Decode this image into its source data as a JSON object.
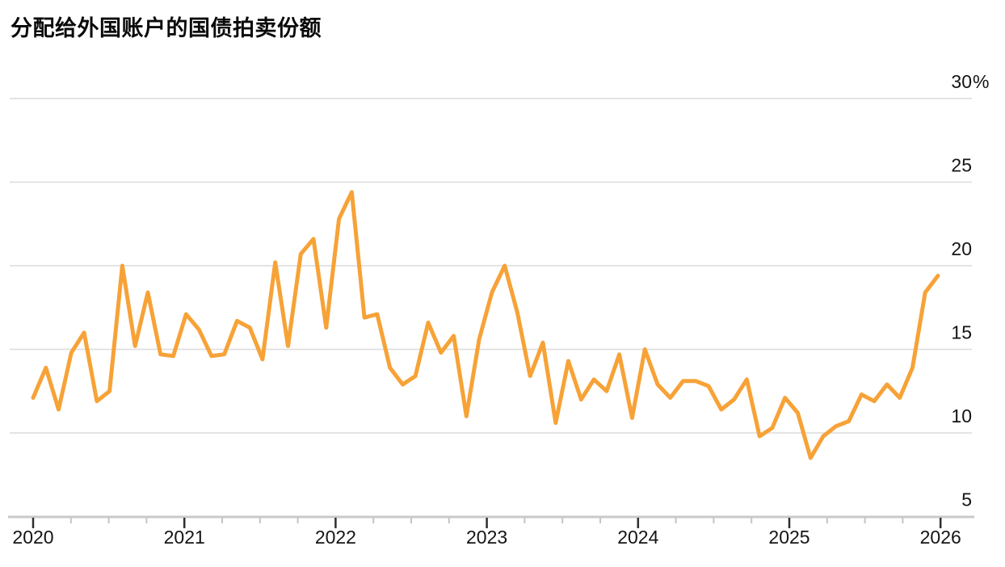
{
  "header": {
    "title": "分配给外国账户的国债拍卖份额"
  },
  "colors": {
    "line": "#F7A237",
    "gridline": "#DBDBDB",
    "axis_baseline": "#C9C9C9",
    "major_tick": "#2E2E2E",
    "minor_tick": "#C4C4C4",
    "text": "#141414",
    "background": "#FFFFFF"
  },
  "chart_data": {
    "type": "line",
    "title": "分配给外国账户的国债拍卖份额",
    "xlabel": "",
    "ylabel": "",
    "unit_suffix": "%",
    "legend": "none",
    "grid": "horizontal",
    "ylim": [
      5,
      30
    ],
    "y_ticks": [
      30,
      25,
      20,
      15,
      10,
      5
    ],
    "y_tick_labels": [
      "30%",
      "25",
      "20",
      "15",
      "10",
      "5"
    ],
    "x_tick_labels": [
      "2020",
      "2021",
      "2022",
      "2023",
      "2024",
      "2025",
      "2026"
    ],
    "x_minor_ticks_per_year": 3,
    "x": [
      "2020-01",
      "2020-02",
      "2020-03",
      "2020-04",
      "2020-05",
      "2020-06",
      "2020-07",
      "2020-08",
      "2020-09",
      "2020-10",
      "2020-11",
      "2020-12",
      "2021-01",
      "2021-02",
      "2021-03",
      "2021-04",
      "2021-05",
      "2021-06",
      "2021-07",
      "2021-08",
      "2021-09",
      "2021-10",
      "2021-11",
      "2021-12",
      "2022-01",
      "2022-02",
      "2022-03",
      "2022-04",
      "2022-05",
      "2022-06",
      "2022-07",
      "2022-08",
      "2022-09",
      "2022-10",
      "2022-11",
      "2022-12",
      "2023-01",
      "2023-02",
      "2023-03",
      "2023-04",
      "2023-05",
      "2023-06",
      "2023-07",
      "2023-08",
      "2023-09",
      "2023-10",
      "2023-11",
      "2023-12",
      "2024-01",
      "2024-02",
      "2024-03",
      "2024-04",
      "2024-05",
      "2024-06",
      "2024-07",
      "2024-08",
      "2024-09",
      "2024-10",
      "2024-11",
      "2024-12",
      "2025-01",
      "2025-02",
      "2025-03",
      "2025-04",
      "2025-05",
      "2025-06",
      "2025-07",
      "2025-08",
      "2025-09",
      "2025-10",
      "2025-11",
      "2025-12"
    ],
    "values": [
      12.1,
      13.9,
      11.4,
      14.8,
      16.0,
      11.9,
      12.5,
      20.0,
      15.2,
      18.4,
      14.7,
      14.6,
      17.1,
      16.2,
      14.6,
      14.7,
      16.7,
      16.3,
      14.4,
      20.2,
      15.2,
      20.7,
      21.6,
      16.3,
      22.8,
      24.4,
      16.9,
      17.1,
      13.9,
      12.9,
      13.4,
      16.6,
      14.8,
      15.8,
      11.0,
      15.6,
      18.4,
      20.0,
      17.2,
      13.4,
      15.4,
      10.6,
      14.3,
      12.0,
      13.2,
      12.5,
      14.7,
      10.9,
      15.0,
      12.9,
      12.1,
      13.1,
      13.1,
      12.8,
      11.4,
      12.0,
      13.2,
      9.8,
      10.3,
      12.1,
      11.2,
      8.5,
      9.8,
      10.4,
      10.7,
      12.3,
      11.9,
      12.9,
      12.1,
      13.9,
      18.4,
      19.4
    ]
  }
}
